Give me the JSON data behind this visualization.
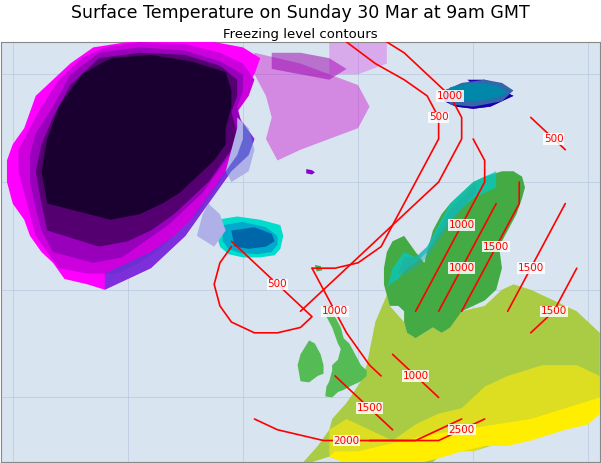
{
  "title": "Surface Temperature on Sunday 30 Mar at 9am GMT",
  "subtitle": "Freezing level contours",
  "title_fontsize": 12.5,
  "subtitle_fontsize": 9.5,
  "background_color": "#ffffff",
  "ocean_color": "#d8e4f0",
  "figsize": [
    6.01,
    4.63
  ],
  "dpi": 100,
  "map_extent": [
    -62,
    42,
    44,
    83
  ],
  "grid_lons": [
    -60,
    -40,
    -20,
    0,
    20,
    40
  ],
  "grid_lats": [
    50,
    60,
    70,
    80
  ]
}
